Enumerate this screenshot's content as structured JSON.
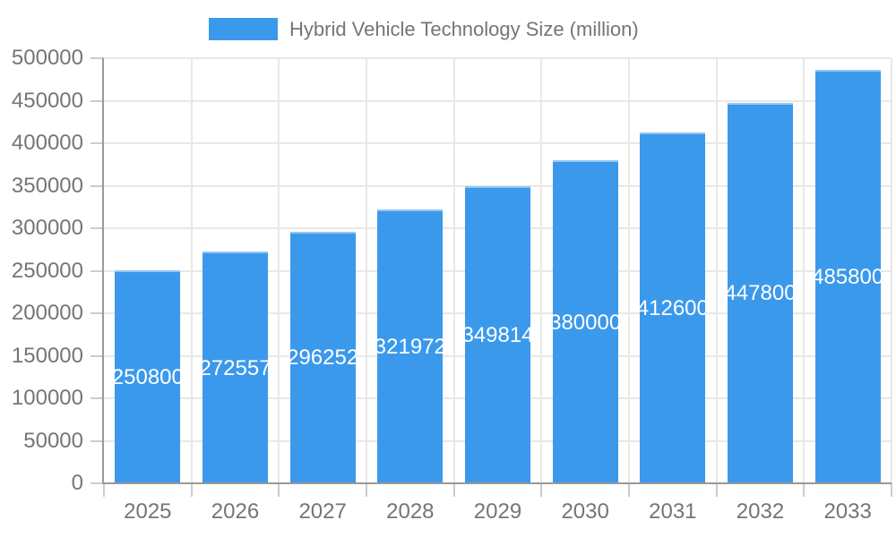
{
  "chart_data": {
    "type": "bar",
    "title": "",
    "legend_position": "top",
    "categories": [
      "2025",
      "2026",
      "2027",
      "2028",
      "2029",
      "2030",
      "2031",
      "2032",
      "2033"
    ],
    "series": [
      {
        "name": "Hybrid Vehicle Technology Size (million)",
        "values": [
          250800,
          272557,
          296252,
          321972,
          349814,
          380000,
          412600,
          447800,
          485800
        ]
      }
    ],
    "xlabel": "",
    "ylabel": "",
    "ylim": [
      0,
      500000
    ],
    "ytick_step": 50000,
    "ytick_labels": [
      "0",
      "50000",
      "100000",
      "150000",
      "200000",
      "250000",
      "300000",
      "350000",
      "400000",
      "450000",
      "500000"
    ],
    "grid": true,
    "bar_value_labels_visible": true,
    "colors": {
      "bar": "#3b99ec",
      "bar_top_edge": "#9fcdf4",
      "bar_value_text": "#ffffff",
      "axis_text": "#757575",
      "gridline": "#e8e8e8",
      "tick": "#cccccc",
      "axis_line": "#999999",
      "background": "#ffffff"
    }
  }
}
